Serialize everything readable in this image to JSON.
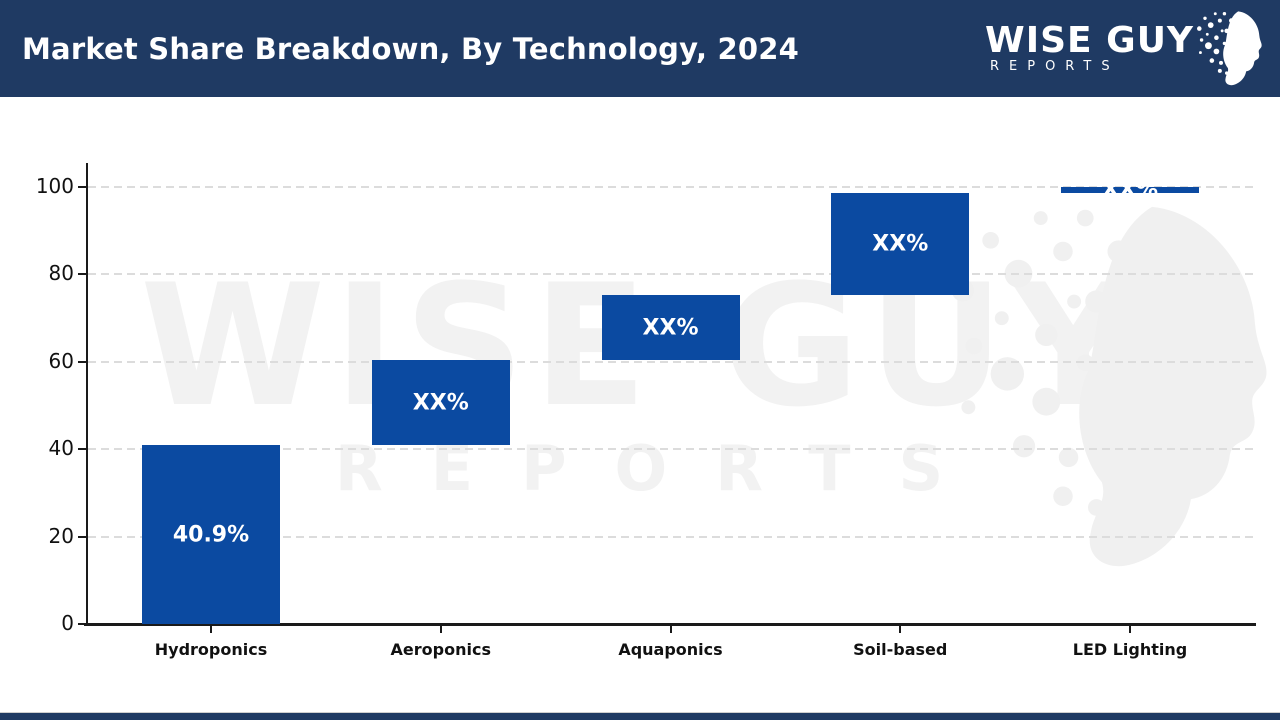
{
  "header": {
    "title": "Market Share Breakdown, By Technology, 2024",
    "logo": {
      "line1": "WISE GUY",
      "line2": "REPORTS"
    }
  },
  "watermark": {
    "line1": "WISE GUY",
    "line2": "REPORTS"
  },
  "chart_data": {
    "type": "bar",
    "subtype": "waterfall",
    "title": "Market Share Breakdown, By Technology, 2024",
    "categories": [
      "Hydroponics",
      "Aeroponics",
      "Aquaponics",
      "Soil-based",
      "LED Lighting"
    ],
    "segments": [
      {
        "category": "Hydroponics",
        "start": 0,
        "end": 40.9,
        "label": "40.9%"
      },
      {
        "category": "Aeroponics",
        "start": 40.9,
        "end": 60.4,
        "label": "XX%"
      },
      {
        "category": "Aquaponics",
        "start": 60.4,
        "end": 75.2,
        "label": "XX%"
      },
      {
        "category": "Soil-based",
        "start": 75.2,
        "end": 98.6,
        "label": "XX%"
      },
      {
        "category": "LED Lighting",
        "start": 98.6,
        "end": 100,
        "label": "XX%"
      }
    ],
    "ylim": [
      0,
      100
    ],
    "yticks": [
      0,
      20,
      40,
      60,
      80,
      100
    ],
    "xlabel": "",
    "ylabel": "",
    "grid": "horizontal-dashed",
    "legend": "none",
    "bar_color": "#0B4AA1",
    "bar_label_color": "#ffffff",
    "axis_color": "#1a1a1a",
    "gridline_color": "#dcdcdc"
  },
  "colors": {
    "header_bg": "#1F3A63",
    "footer_bg": "#1F3A63",
    "watermark": "#f2f2f2"
  }
}
